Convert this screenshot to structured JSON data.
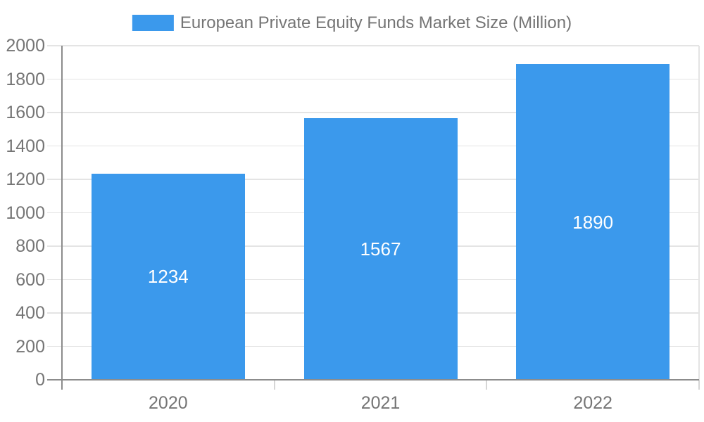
{
  "chart_data": {
    "type": "bar",
    "title": "European Private Equity Funds Market Size (Million)",
    "legend": {
      "label": "European Private Equity Funds Market Size (Million)",
      "position": "top"
    },
    "categories": [
      "2020",
      "2021",
      "2022"
    ],
    "values": [
      1234,
      1567,
      1890
    ],
    "bar_value_labels": [
      "1234",
      "1567",
      "1890"
    ],
    "xlabel": "",
    "ylabel": "",
    "ylim": [
      0,
      2000
    ],
    "yticks": [
      0,
      200,
      400,
      600,
      800,
      1000,
      1200,
      1400,
      1600,
      1800,
      2000
    ],
    "grid": true,
    "colors": {
      "bar": "#3b99ec",
      "bar_value_text": "#ffffff",
      "axis_text": "#757575",
      "axis_line": "#8c8c8c",
      "grid_line": "#e4e4e4",
      "tick_line": "#d6d6d6",
      "background": "#ffffff"
    }
  }
}
